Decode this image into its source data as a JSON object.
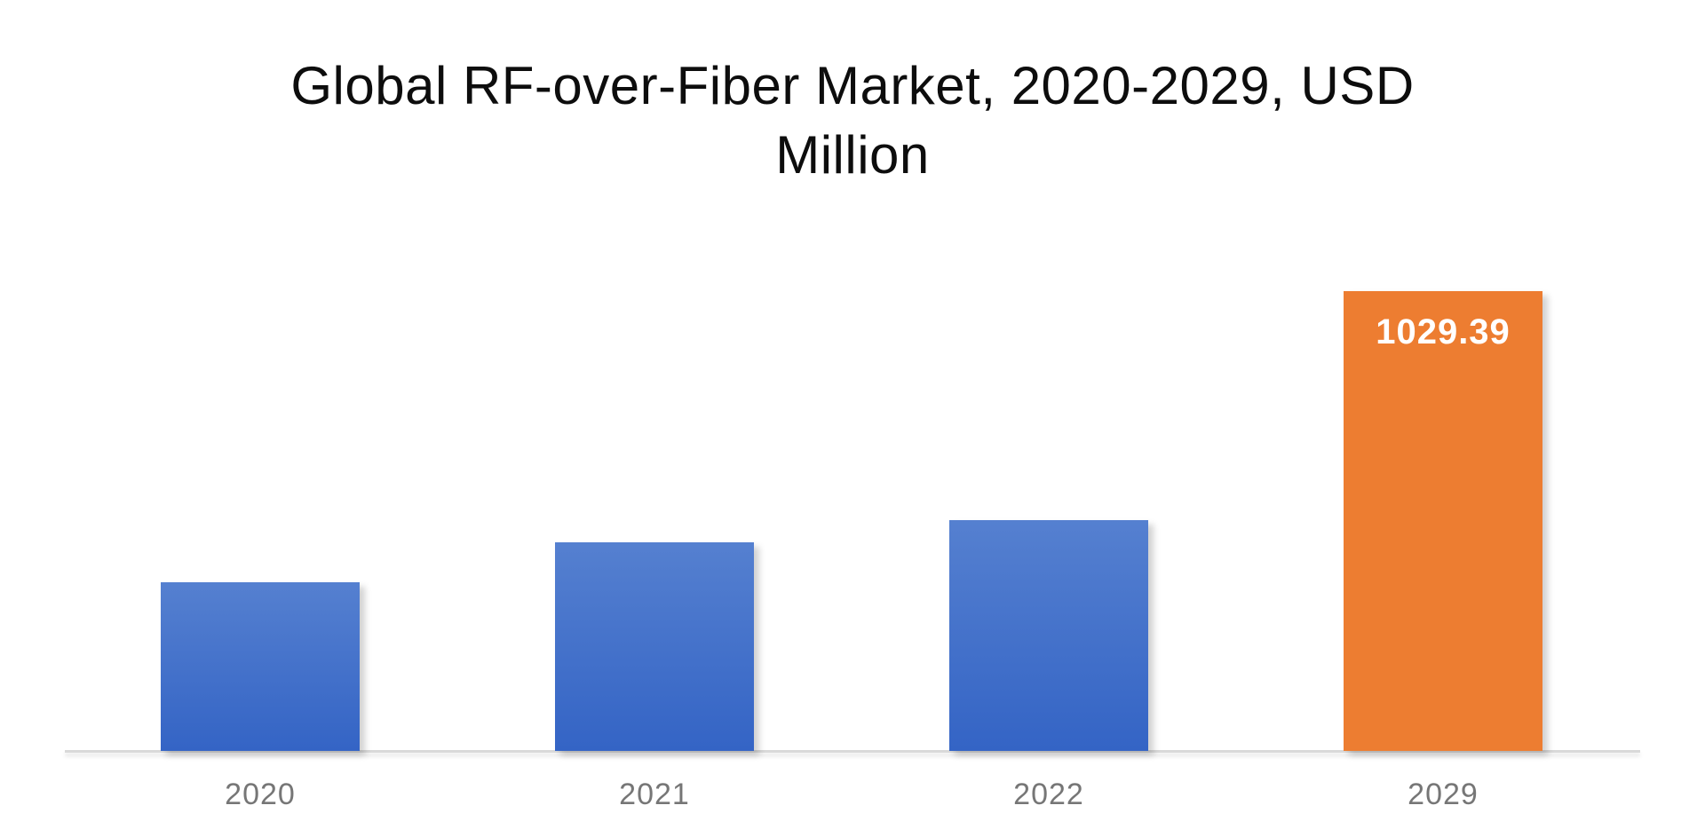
{
  "chart_data": {
    "type": "bar",
    "title": "Global RF-over-Fiber Market, 2020-2029, USD Million",
    "title_lines": [
      "Global RF-over-Fiber Market, 2020-2029, USD",
      "Million"
    ],
    "categories": [
      "2020",
      "2021",
      "2022",
      "2029"
    ],
    "values": [
      378,
      467,
      517,
      1029.39
    ],
    "data_labels": [
      "",
      "",
      "",
      "1029.39"
    ],
    "bar_colors": [
      "#4472C4",
      "#4472C4",
      "#4472C4",
      "#ED7D31"
    ],
    "bar_gradient_top": "#5580D0",
    "bar_gradient_bottom": "#3464C5",
    "xlabel": "",
    "ylabel": "",
    "ylim": [
      0,
      1100
    ],
    "gridlines": false,
    "legend": "none",
    "y_axis_visible": false,
    "axis_line_color": "#D9D9D9",
    "tick_label_color": "#767676",
    "value_label_color": "#FFFFFF",
    "title_color": "#0D0D0D",
    "background_color": "#FFFFFF"
  }
}
